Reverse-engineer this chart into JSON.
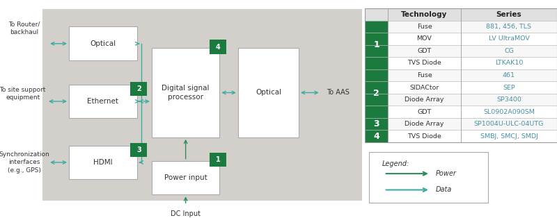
{
  "bg_color": "#d3d0cb",
  "white": "#ffffff",
  "green_dark": "#1b7a3e",
  "teal": "#3aada0",
  "power_color": "#2e8b57",
  "text_dark": "#333333",
  "link_color": "#4a90a4",
  "table_header_bg": "#e8e8e8",
  "table_border": "#aaaaaa",
  "table_data": [
    {
      "group": "1",
      "tech": "Fuse",
      "series": "881, 456, TLS"
    },
    {
      "group": "1",
      "tech": "MOV",
      "series": "LV UltraMOV"
    },
    {
      "group": "1",
      "tech": "GDT",
      "series": "CG"
    },
    {
      "group": "1",
      "tech": "TVS Diode",
      "series": "LTKAK10"
    },
    {
      "group": "2",
      "tech": "Fuse",
      "series": "461"
    },
    {
      "group": "2",
      "tech": "SIDACtor",
      "series": "SEP"
    },
    {
      "group": "2",
      "tech": "Diode Array",
      "series": "SP3400"
    },
    {
      "group": "2",
      "tech": "GDT",
      "series": "SL0902A090SM"
    },
    {
      "group": "3",
      "tech": "Diode Array",
      "series": "SP1004U-ULC-04UTG"
    },
    {
      "group": "4",
      "tech": "TVS Diode",
      "series": "SMBJ, SMCJ, SMDJ"
    }
  ]
}
